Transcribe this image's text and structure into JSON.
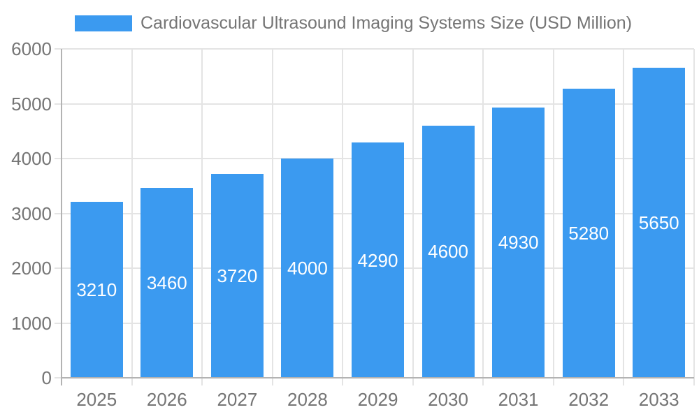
{
  "chart_data": {
    "type": "bar",
    "title": "Cardiovascular Ultrasound Imaging Systems Size (USD Million)",
    "series_name": "Cardiovascular Ultrasound Imaging Systems Size (USD Million)",
    "categories": [
      "2025",
      "2026",
      "2027",
      "2028",
      "2029",
      "2030",
      "2031",
      "2032",
      "2033"
    ],
    "values": [
      3210,
      3460,
      3720,
      4000,
      4290,
      4600,
      4930,
      5280,
      5650
    ],
    "xlabel": "",
    "ylabel": "",
    "ylim": [
      0,
      6000
    ],
    "yticks": [
      0,
      1000,
      2000,
      3000,
      4000,
      5000,
      6000
    ],
    "grid": true,
    "legend_position": "top",
    "bar_labels_inside": true,
    "colors": {
      "bar": "#3b9af0",
      "grid": "#e4e4e4",
      "axis": "#b3b3b3",
      "text": "#757575",
      "value_label": "#ffffff",
      "background": "#ffffff"
    }
  }
}
